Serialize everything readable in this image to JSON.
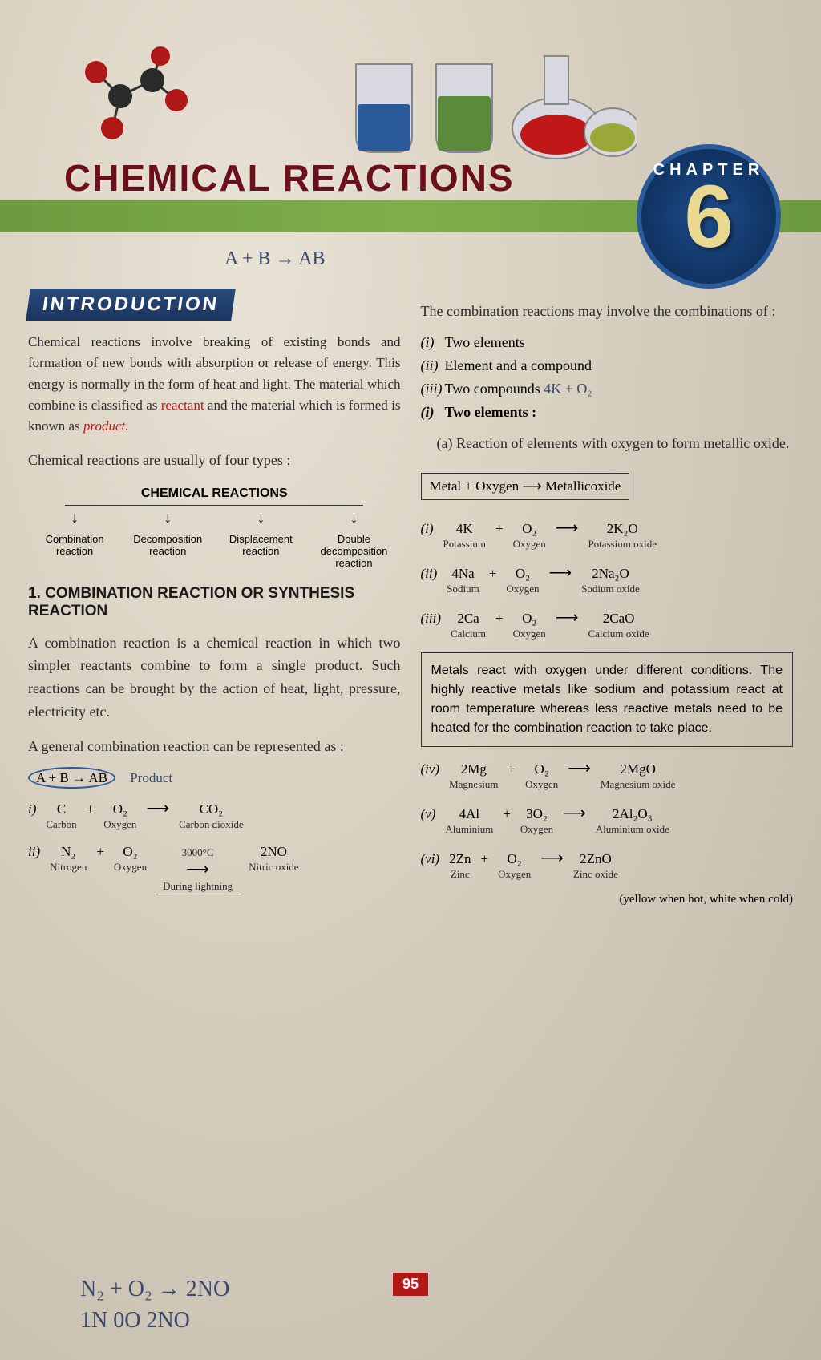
{
  "header": {
    "title": "CHEMICAL REACTIONS",
    "chapter_word": "CHAPTER",
    "chapter_num": "6",
    "handwriting_top": "A + B → AB"
  },
  "intro": {
    "banner": "INTRODUCTION",
    "text_prefix": "Chemical reactions involve breaking of existing bonds and formation of new bonds with absorption or release of energy. This energy is normally in the form of heat and light. The material which combine is classified as ",
    "reactant": "reactant",
    "text_mid": " and the material which is formed is known as ",
    "product": "product."
  },
  "four_types": "Chemical reactions are usually of four types :",
  "tree": {
    "root": "CHEMICAL REACTIONS",
    "leaves": [
      "Combination reaction",
      "Decomposition reaction",
      "Displacement reaction",
      "Double decomposition reaction"
    ]
  },
  "section1": {
    "heading": "1. COMBINATION REACTION OR SYNTHESIS REACTION",
    "para1": "A combination reaction is a chemical reaction in which two simpler reactants combine to form a single product. Such reactions can be brought by the action of heat, light, pressure, electricity etc.",
    "para2": "A general combination reaction can be represented as :",
    "general_eq": "A + B → AB",
    "hw_product": "Product",
    "eq_i": {
      "num": "i)",
      "terms": [
        "C",
        "+",
        "O₂",
        "⟶",
        "CO₂"
      ],
      "subs": [
        "Carbon",
        "",
        "Oxygen",
        "",
        "Carbon dioxide"
      ]
    },
    "eq_ii": {
      "num": "ii)",
      "terms": [
        "N₂",
        "+",
        "O₂",
        "",
        "2NO"
      ],
      "subs": [
        "Nitrogen",
        "",
        "Oxygen",
        "",
        "Nitric oxide"
      ],
      "arrow_top": "3000°C",
      "arrow_bottom": "During lightning"
    }
  },
  "right": {
    "combo_intro": "The combination reactions may involve the combinations of :",
    "combo_list": [
      {
        "num": "(i)",
        "text": "Two elements"
      },
      {
        "num": "(ii)",
        "text": "Element and a compound"
      },
      {
        "num": "(iii)",
        "text": "Two compounds"
      }
    ],
    "hw_iii": "4K + O₂",
    "sub_i": {
      "num": "(i)",
      "text": "Two elements :"
    },
    "sub_a": "(a) Reaction of elements with oxygen to form metallic oxide.",
    "box1": "Metal + Oxygen ⟶ Metallicoxide",
    "eqs_a": [
      {
        "num": "(i)",
        "terms": [
          "4K",
          "+",
          "O₂",
          "⟶",
          "2K₂O"
        ],
        "subs": [
          "Potassium",
          "",
          "Oxygen",
          "",
          "Potassium oxide"
        ]
      },
      {
        "num": "(ii)",
        "terms": [
          "4Na",
          "+",
          "O₂",
          "⟶",
          "2Na₂O"
        ],
        "subs": [
          "Sodium",
          "",
          "Oxygen",
          "",
          "Sodium oxide"
        ]
      },
      {
        "num": "(iii)",
        "terms": [
          "2Ca",
          "+",
          "O₂",
          "⟶",
          "2CaO"
        ],
        "subs": [
          "Calcium",
          "",
          "Oxygen",
          "",
          "Calcium oxide"
        ]
      }
    ],
    "infobox": "Metals react with oxygen under different conditions. The highly reactive metals like sodium and potassium react at room temperature whereas less reactive metals need to be heated for the combination reaction to take place.",
    "eqs_b": [
      {
        "num": "(iv)",
        "terms": [
          "2Mg",
          "+",
          "O₂",
          "⟶",
          "2MgO"
        ],
        "subs": [
          "Magnesium",
          "",
          "Oxygen",
          "",
          "Magnesium oxide"
        ]
      },
      {
        "num": "(v)",
        "terms": [
          "4Al",
          "+",
          "3O₂",
          "⟶",
          "2Al₂O₃"
        ],
        "subs": [
          "Aluminium",
          "",
          "Oxygen",
          "",
          "Aluminium oxide"
        ]
      },
      {
        "num": "(vi)",
        "terms": [
          "2Zn",
          "+",
          "O₂",
          "⟶",
          "2ZnO"
        ],
        "subs": [
          "Zinc",
          "",
          "Oxygen",
          "",
          "Zinc oxide"
        ]
      }
    ],
    "note": "(yellow when hot, white when cold)"
  },
  "page_num": "95",
  "hw_bottom": [
    "N₂ + O₂ → 2NO",
    "1N   0O   2NO"
  ],
  "colors": {
    "title": "#6b0f1a",
    "badge_bg": "#1e4d8b",
    "badge_num": "#e8d890",
    "banner_bg": "#2a4a7a",
    "green_band": "#7fb04a",
    "red_text": "#c01818",
    "pagenum_bg": "#b01818",
    "handwriting": "#3a4a6a"
  }
}
